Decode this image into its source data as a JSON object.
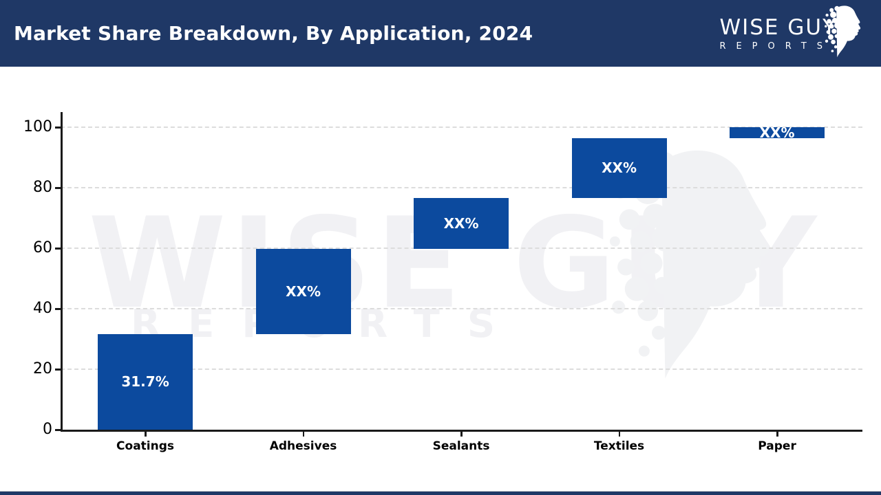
{
  "colors": {
    "header_bg": "#1f3866",
    "bar_color": "#0c4a9e",
    "bar_label_color": "#ffffff",
    "gridline_color": "#dcdcdc",
    "watermark_color": "#f1f1f4"
  },
  "header": {
    "title": "Market Share Breakdown, By Application, 2024",
    "logo_line1": "WISE GUY",
    "logo_line2": "REPORTS"
  },
  "watermark": {
    "line1": "WISE GUY",
    "line2": "REPORTS"
  },
  "chart_data": {
    "type": "bar",
    "subtype": "waterfall",
    "title": "Market Share Breakdown, By Application, 2024",
    "categories": [
      "Coatings",
      "Adhesives",
      "Sealants",
      "Textiles",
      "Paper"
    ],
    "segments": [
      {
        "category": "Coatings",
        "start": 0,
        "end": 31.7,
        "label": "31.7%"
      },
      {
        "category": "Adhesives",
        "start": 31.7,
        "end": 59.8,
        "label": "XX%"
      },
      {
        "category": "Sealants",
        "start": 59.8,
        "end": 76.7,
        "label": "XX%"
      },
      {
        "category": "Textiles",
        "start": 76.7,
        "end": 96.3,
        "label": "XX%"
      },
      {
        "category": "Paper",
        "start": 96.3,
        "end": 100,
        "label": "XX%"
      }
    ],
    "yticks": [
      0,
      20,
      40,
      60,
      80,
      100
    ],
    "ylim": [
      0,
      105
    ],
    "xlabel": "",
    "ylabel": "",
    "grid": {
      "horizontal": true,
      "style": "dashed"
    },
    "legend": "none"
  }
}
